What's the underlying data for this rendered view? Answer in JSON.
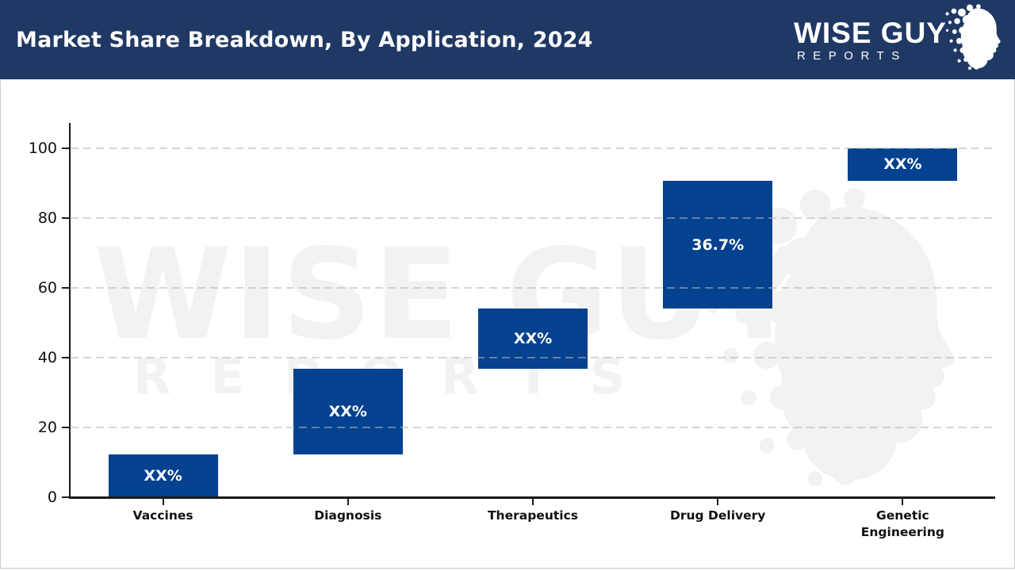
{
  "header": {
    "title": "Market Share Breakdown, By Application, 2024",
    "logo": {
      "line1": "WISE GUY",
      "line2": "REPORTS"
    }
  },
  "watermark": {
    "line1": "WISE GUY",
    "line2": "REPORTS"
  },
  "chart_data": {
    "type": "bar",
    "subtype": "waterfall-floating-bars",
    "title": "Market Share Breakdown, By Application, 2024",
    "categories": [
      "Vaccines",
      "Diagnosis",
      "Therapeutics",
      "Drug Delivery",
      "Genetic Engineering"
    ],
    "series": [
      {
        "name": "Market Share",
        "segments": [
          {
            "category": "Vaccines",
            "start": 0,
            "end": 12.3,
            "label": "XX%"
          },
          {
            "category": "Diagnosis",
            "start": 12.3,
            "end": 36.9,
            "label": "XX%"
          },
          {
            "category": "Therapeutics",
            "start": 36.9,
            "end": 54.0,
            "label": "XX%"
          },
          {
            "category": "Drug Delivery",
            "start": 54.0,
            "end": 90.7,
            "label": "36.7%"
          },
          {
            "category": "Genetic Engineering",
            "start": 90.7,
            "end": 100,
            "label": "XX%"
          }
        ]
      }
    ],
    "xlabel": "",
    "ylabel": "",
    "ylim": [
      0,
      100
    ],
    "yticks": [
      0,
      20,
      40,
      60,
      80,
      100
    ],
    "grid": "horizontal-dashed",
    "legend": "none",
    "bar_color": "#04418f",
    "bar_label_color": "#ffffff"
  },
  "colors": {
    "header_bg": "#1f3864",
    "bar": "#04418f",
    "axis": "#1a1a1a",
    "grid": "#b5b5b5",
    "watermark": "#f2f2f2",
    "background": "#ffffff"
  }
}
